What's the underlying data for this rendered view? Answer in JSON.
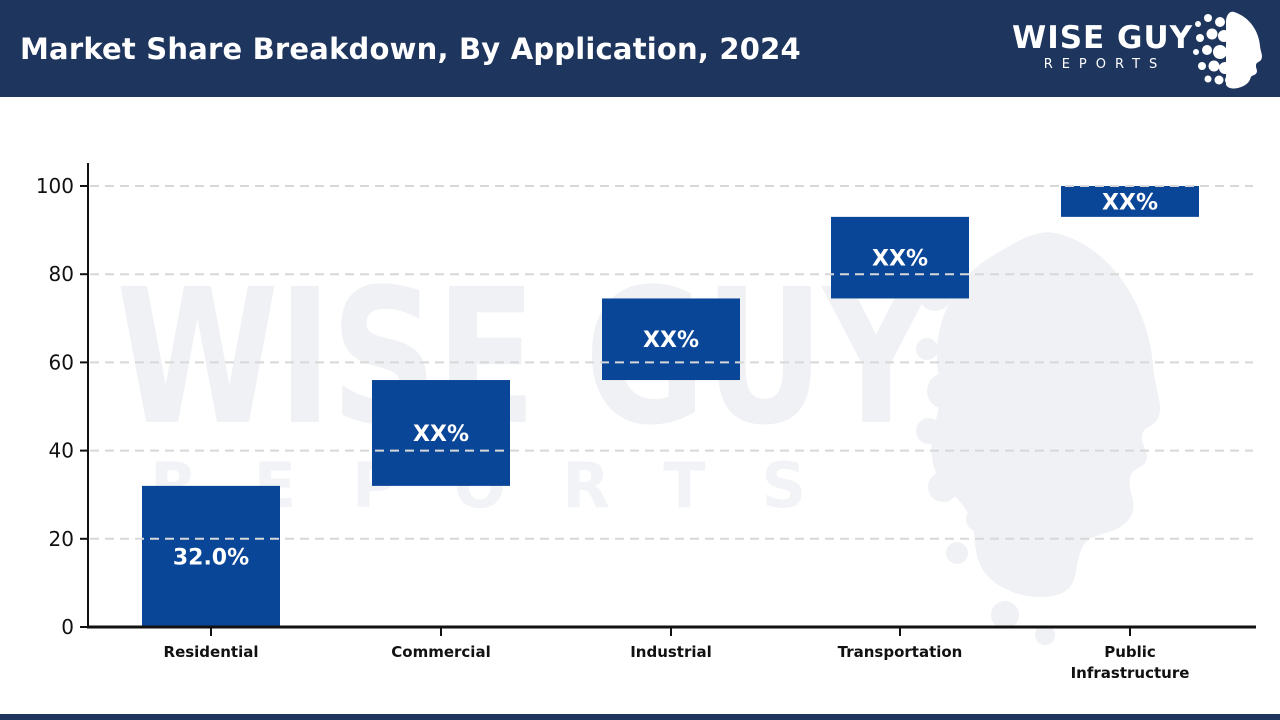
{
  "header": {
    "title": "Market Share Breakdown, By Application, 2024",
    "logo": {
      "line1": "WISE GUY",
      "line2": "REPORTS"
    }
  },
  "watermark": {
    "line1": "WISE GUY",
    "line2": "REPORTS"
  },
  "colors": {
    "header_bg": "#1e355e",
    "footer_bg": "#1e355e",
    "bar": "#0a4697",
    "bar_label": "#ffffff",
    "grid": "#d8d8d8",
    "axis": "#111111",
    "watermark": "#eff1f4"
  },
  "chart_data": {
    "type": "bar",
    "subtype": "waterfall",
    "title": "Market Share Breakdown, By Application, 2024",
    "xlabel": "",
    "ylabel": "",
    "ylim": [
      0,
      100
    ],
    "yticks": [
      0,
      20,
      40,
      60,
      80,
      100
    ],
    "grid": "horizontal-dashed",
    "legend": "none",
    "bar_color": "#0a4697",
    "categories": [
      "Residential",
      "Commercial",
      "Industrial",
      "Transportation",
      "Public Infrastructure"
    ],
    "tick_lines": [
      [
        "Residential"
      ],
      [
        "Commercial"
      ],
      [
        "Industrial"
      ],
      [
        "Transportation"
      ],
      [
        "Public",
        "Infrastructure"
      ]
    ],
    "segments": [
      {
        "category": "Residential",
        "start": 0,
        "end": 32,
        "label": "32.0%"
      },
      {
        "category": "Commercial",
        "start": 32,
        "end": 56,
        "label": "XX%"
      },
      {
        "category": "Industrial",
        "start": 56,
        "end": 74.5,
        "label": "XX%"
      },
      {
        "category": "Transportation",
        "start": 74.5,
        "end": 93,
        "label": "XX%"
      },
      {
        "category": "Public Infrastructure",
        "start": 93,
        "end": 100,
        "label": "XX%"
      }
    ]
  }
}
